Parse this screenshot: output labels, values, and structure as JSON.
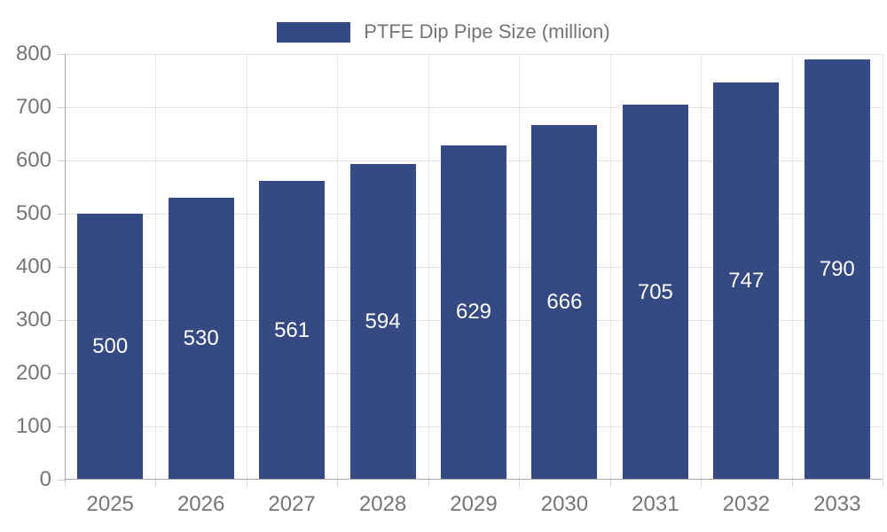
{
  "chart_data": {
    "type": "bar",
    "legend": "PTFE Dip Pipe Size (million)",
    "categories": [
      "2025",
      "2026",
      "2027",
      "2028",
      "2029",
      "2030",
      "2031",
      "2032",
      "2033"
    ],
    "values": [
      500,
      530,
      561,
      594,
      629,
      666,
      705,
      747,
      790
    ],
    "title": "",
    "xlabel": "",
    "ylabel": "",
    "ylim": [
      0,
      800
    ],
    "yticks": [
      0,
      100,
      200,
      300,
      400,
      500,
      600,
      700,
      800
    ],
    "grid": "on",
    "legend_position": "top-center",
    "bar_color": "#354982",
    "value_label_color": "#ffffff",
    "axis_text_color": "#757575",
    "gridline_color": "#e0e0e0",
    "axis_line_color": "#a8a8a8"
  }
}
